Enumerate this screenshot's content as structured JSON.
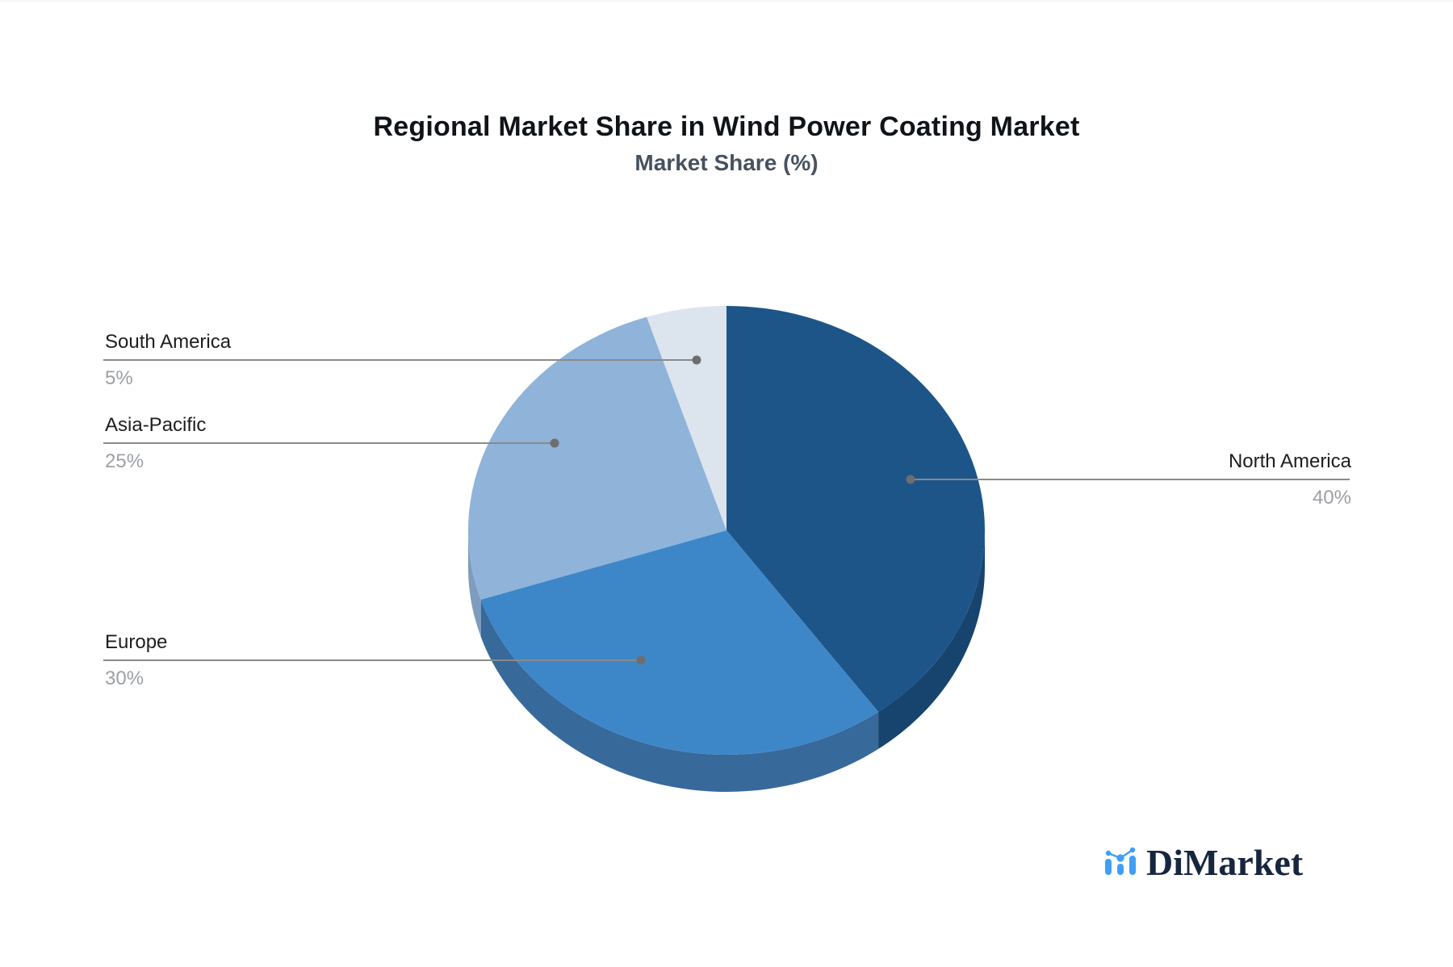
{
  "header": {
    "title": "Regional Market Share in Wind Power Coating Market",
    "subtitle": "Market Share (%)"
  },
  "chart_data": {
    "type": "pie",
    "style": "3d-pie",
    "title": "Regional Market Share in Wind Power Coating Market",
    "subtitle": "Market Share (%)",
    "unit": "%",
    "start_angle": "12-oclock",
    "direction": "clockwise",
    "legend_position": "outside-leader-lines",
    "slices": [
      {
        "label": "North America",
        "value": 40,
        "pct_label": "40%",
        "color": "#1d5589",
        "side_color": "#16446e",
        "label_side": "right"
      },
      {
        "label": "Europe",
        "value": 30,
        "pct_label": "30%",
        "color": "#3d87c9",
        "side_color": "#38699b",
        "label_side": "left"
      },
      {
        "label": "Asia-Pacific",
        "value": 25,
        "pct_label": "25%",
        "color": "#8fb3d9",
        "side_color": "#7e9cbd",
        "label_side": "left"
      },
      {
        "label": "South America",
        "value": 5,
        "pct_label": "5%",
        "color": "#dce4ee",
        "side_color": "#c5d1e0",
        "label_side": "left"
      }
    ],
    "leader_line_color": "#8a8a8a",
    "leader_dot_color": "#6e6e6e",
    "name_text_color": "#1d1d1f",
    "pct_text_color": "#9b9fa4"
  },
  "branding": {
    "logo_text": "DiMarket",
    "logo_icon": "bar-line-chart-icon",
    "logo_text_color": "#17263f",
    "logo_icon_color": "#3f9ff5"
  }
}
